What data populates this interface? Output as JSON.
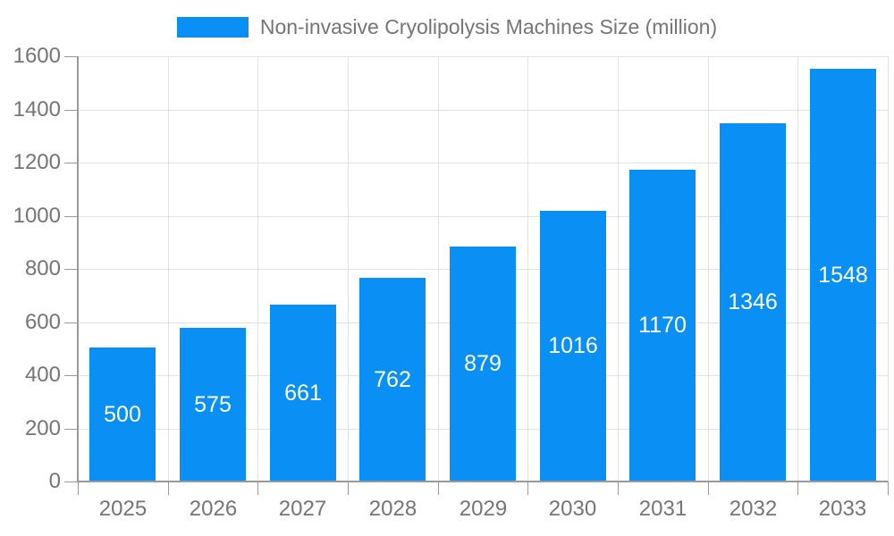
{
  "legend": {
    "label": "Non-invasive Cryolipolysis Machines Size (million)"
  },
  "chart_data": {
    "type": "bar",
    "title": "Non-invasive Cryolipolysis Machines Size (million)",
    "categories": [
      "2025",
      "2026",
      "2027",
      "2028",
      "2029",
      "2030",
      "2031",
      "2032",
      "2033"
    ],
    "values": [
      500,
      575,
      661,
      762,
      879,
      1016,
      1170,
      1346,
      1548
    ],
    "series": [
      {
        "name": "Non-invasive Cryolipolysis Machines Size (million)",
        "values": [
          500,
          575,
          661,
          762,
          879,
          1016,
          1170,
          1346,
          1548
        ]
      }
    ],
    "xlabel": "",
    "ylabel": "",
    "ylim": [
      0,
      1600
    ],
    "ytick_step": 200,
    "ytick_labels": [
      "0",
      "200",
      "400",
      "600",
      "800",
      "1000",
      "1200",
      "1400",
      "1600"
    ],
    "grid": true,
    "legend_position": "top-center",
    "value_labels": "inside-center"
  },
  "colors": {
    "background": "#ffffff",
    "bar": "#0a90f5",
    "axis": "#999999",
    "grid": "#e2e2e2",
    "tick_label": "#757575",
    "legend_text": "#757575",
    "value_label": "#ffffff"
  }
}
